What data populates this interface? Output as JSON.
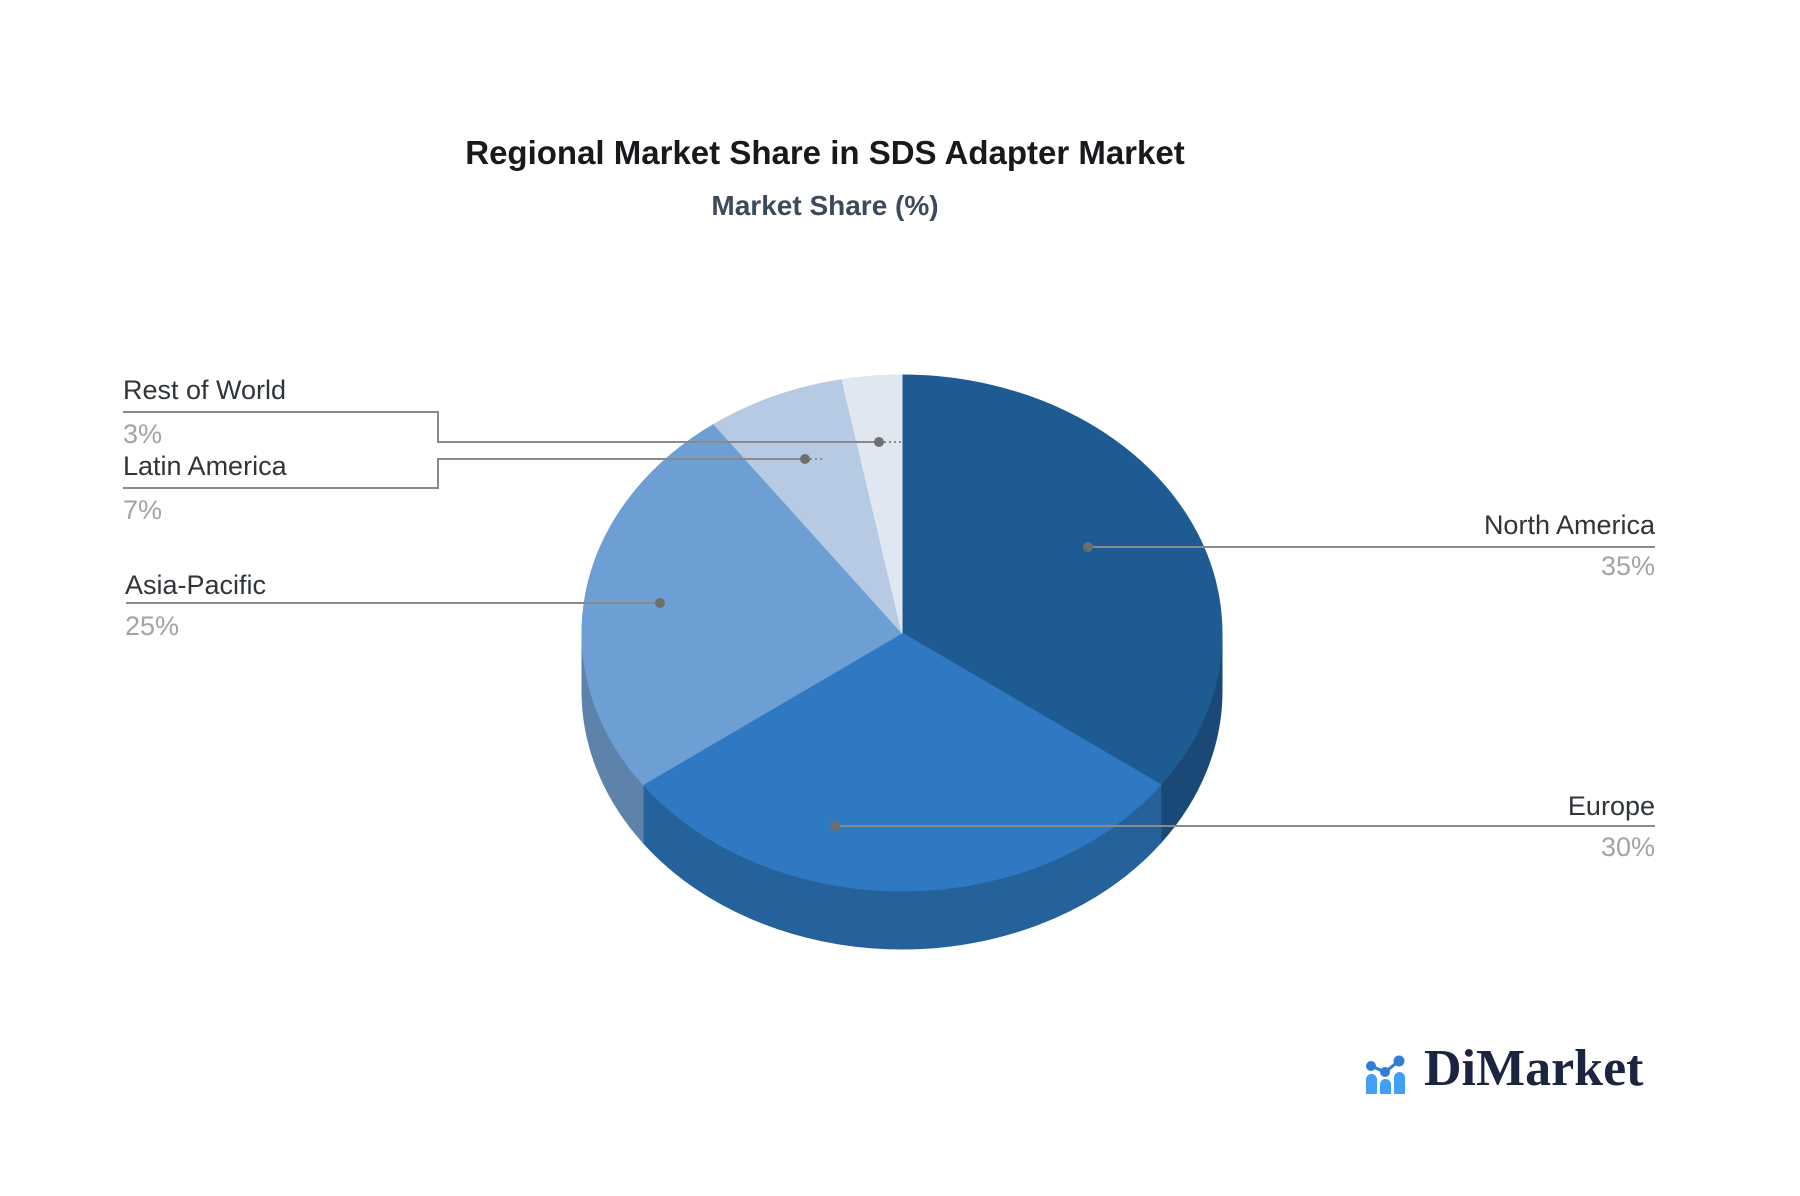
{
  "header": {
    "title": "Regional Market Share in SDS Adapter Market",
    "subtitle": "Market Share (%)"
  },
  "chart_data": {
    "type": "pie",
    "is_3d": true,
    "unit": "%",
    "title": "Regional Market Share in SDS Adapter Market",
    "subtitle": "Market Share (%)",
    "start_angle_deg": 0,
    "direction": "clockwise",
    "legend_position": "callout-labels",
    "slices": [
      {
        "label": "North America",
        "value": 35,
        "pct_label": "35%",
        "color": "#1f5b93",
        "side_color": "#1a4977"
      },
      {
        "label": "Europe",
        "value": 30,
        "pct_label": "30%",
        "color": "#2e79c1",
        "side_color": "#25619b"
      },
      {
        "label": "Asia-Pacific",
        "value": 25,
        "pct_label": "25%",
        "color": "#6d9ed4",
        "side_color": "#5e83ab"
      },
      {
        "label": "Latin America",
        "value": 7,
        "pct_label": "7%",
        "color": "#b6cae3",
        "side_color": "#92a9c6"
      },
      {
        "label": "Rest of World",
        "value": 3,
        "pct_label": "3%",
        "color": "#e0e7f1",
        "side_color": "#b8c2d1"
      }
    ]
  },
  "colors": {
    "leader_line": "#8a8a8a",
    "dot": "#6e6e6e",
    "label_text": "#30353a",
    "pct_text": "#a3a3a3"
  },
  "brand": {
    "name": "DiMarket",
    "icon": "mini-bar-line-chart-icon",
    "icon_bar_color": "#41a0f6",
    "icon_dot_color": "#2d7fd3",
    "text_color": "#1b2540"
  }
}
